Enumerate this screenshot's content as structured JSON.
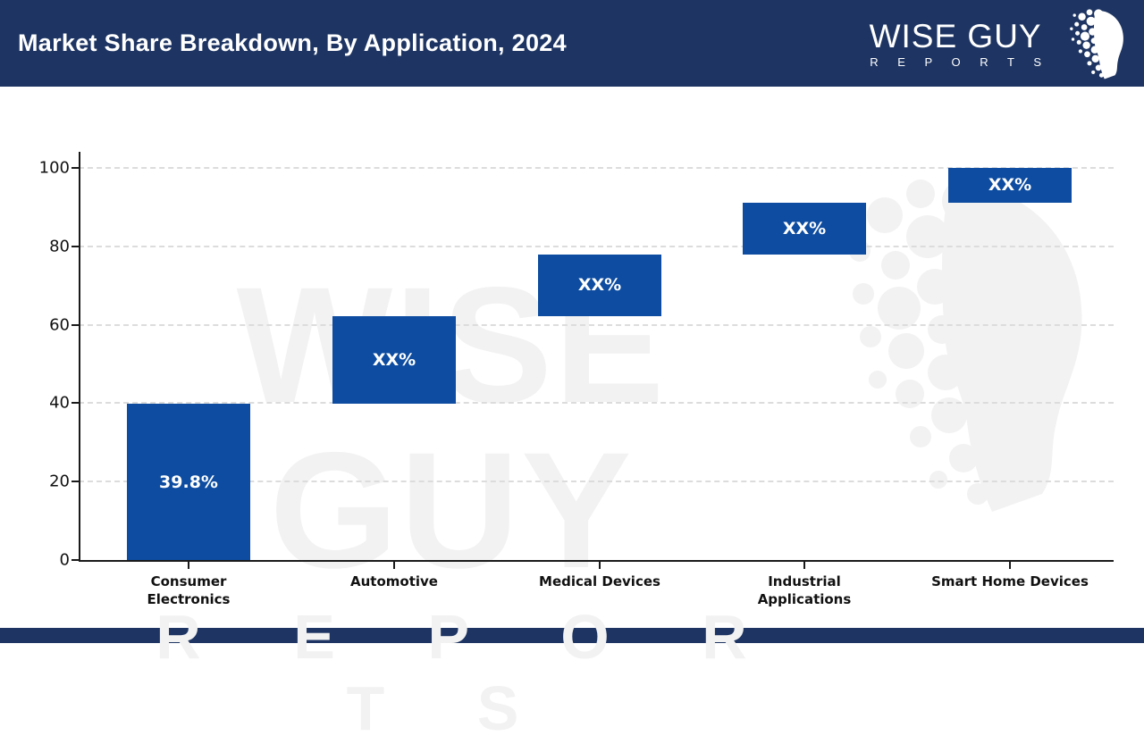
{
  "header": {
    "title": "Market Share Breakdown, By Application, 2024",
    "logo": {
      "line1": "WISE GUY",
      "line2": "R E P O R T S"
    }
  },
  "watermark": {
    "line1": "WISE GUY",
    "line2": "R E P O R T S"
  },
  "colors": {
    "header_bg": "#1e3563",
    "bar_blue": "#0d4ca0",
    "grid_gray": "#dcdcdc",
    "axis_black": "#1a1a1a",
    "value_label_white": "#ffffff",
    "watermark_gray": "#f2f2f2"
  },
  "chart_data": {
    "type": "bar",
    "subtype": "waterfall",
    "title": "Market Share Breakdown, By Application, 2024",
    "xlabel": "",
    "ylabel": "",
    "ylim": [
      0,
      100
    ],
    "yticks": [
      0,
      20,
      40,
      60,
      80,
      100
    ],
    "grid": "horizontal-dashed",
    "legend": "none",
    "categories": [
      "Consumer Electronics",
      "Automotive",
      "Medical Devices",
      "Industrial Applications",
      "Smart Home Devices"
    ],
    "bars": [
      {
        "category_lines": [
          "Consumer",
          "Electronics"
        ],
        "label": "39.8%",
        "start": 0,
        "end": 39.8,
        "value": 39.8
      },
      {
        "category_lines": [
          "Automotive"
        ],
        "label": "XX%",
        "start": 39.8,
        "end": 62.2,
        "value": 22.4
      },
      {
        "category_lines": [
          "Medical Devices"
        ],
        "label": "XX%",
        "start": 62.2,
        "end": 78,
        "value": 15.8
      },
      {
        "category_lines": [
          "Industrial",
          "Applications"
        ],
        "label": "XX%",
        "start": 78,
        "end": 91.2,
        "value": 13.2
      },
      {
        "category_lines": [
          "Smart Home Devices"
        ],
        "label": "XX%",
        "start": 91.2,
        "end": 100,
        "value": 8.8
      }
    ]
  }
}
